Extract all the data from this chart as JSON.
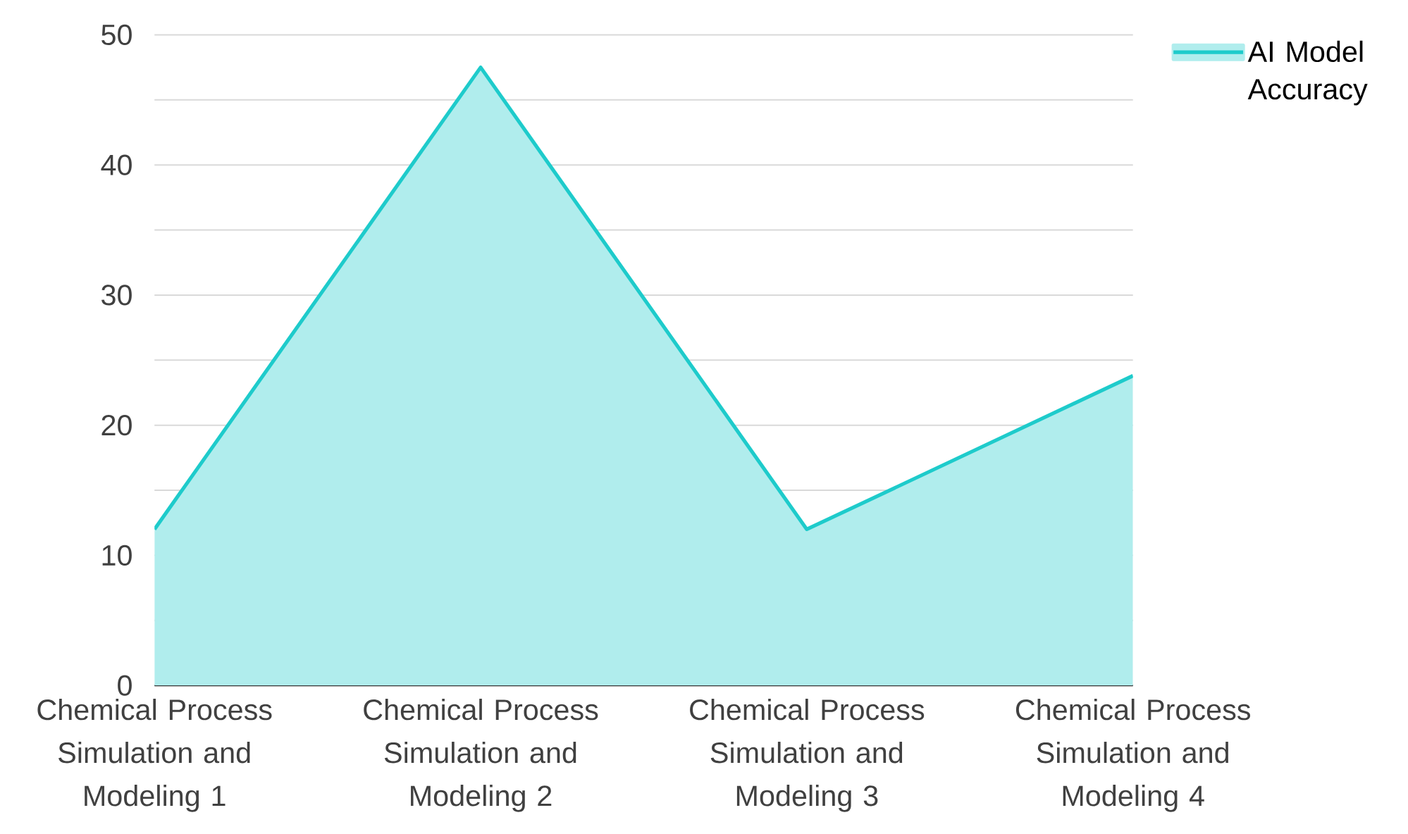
{
  "chart_data": {
    "type": "area",
    "categories": [
      "Chemical Process Simulation and Modeling 1",
      "Chemical Process Simulation and Modeling 2",
      "Chemical Process Simulation and Modeling 3",
      "Chemical Process Simulation and Modeling 4"
    ],
    "series": [
      {
        "name": "AI Model Accuracy",
        "color": "#1ecbcb",
        "values": [
          12,
          47.5,
          12,
          23.8
        ]
      }
    ],
    "ylim": [
      0,
      50
    ],
    "yticks": [
      0,
      {
        "value": 5,
        "label": null
      },
      10,
      {
        "value": 15,
        "label": null
      },
      20,
      {
        "value": 25,
        "label": null
      },
      30,
      {
        "value": 35,
        "label": null
      },
      40,
      {
        "value": 45,
        "label": null
      },
      50
    ],
    "grid": "y",
    "legend": "top right"
  }
}
